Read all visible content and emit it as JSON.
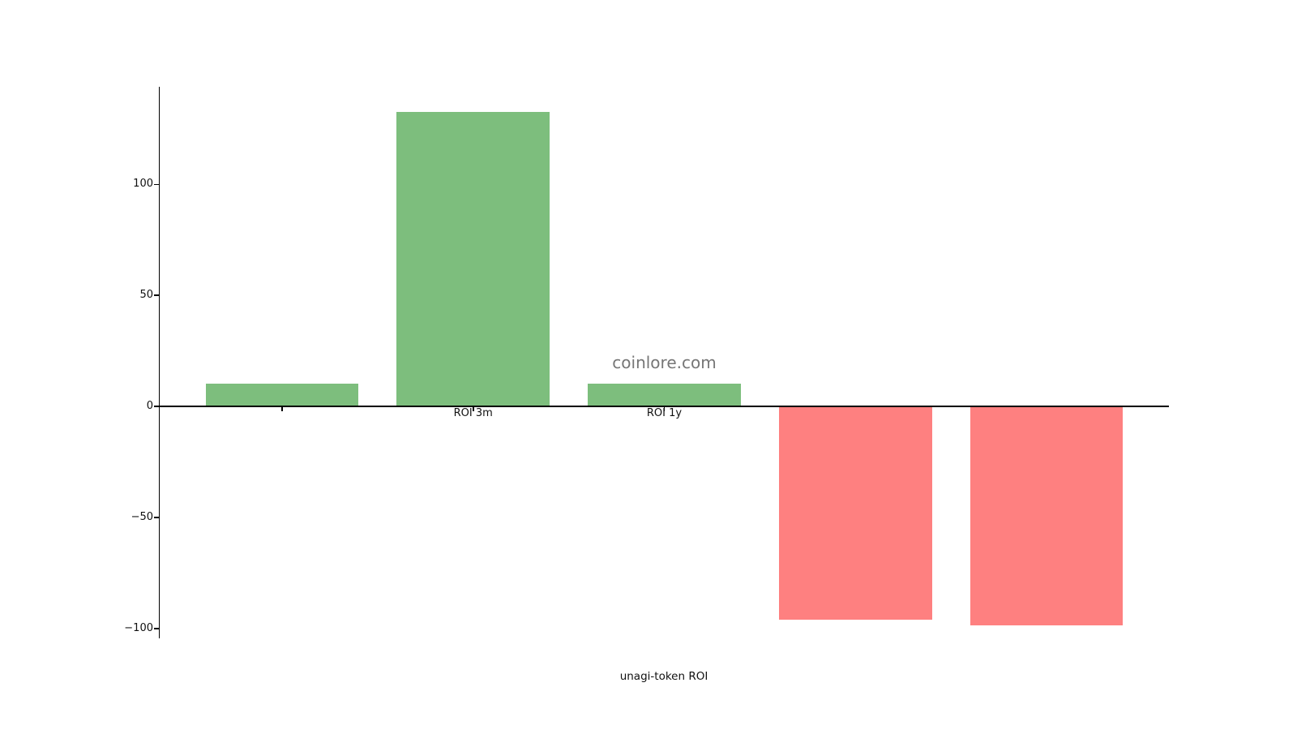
{
  "chart_data": {
    "type": "bar",
    "title": "",
    "xlabel": "unagi-token ROI",
    "ylabel": "",
    "watermark": "coinlore.com",
    "categories": [
      "",
      "ROI 3m",
      "ROI 1y",
      "",
      ""
    ],
    "values": [
      10.3,
      132.6,
      10.2,
      -95.8,
      -98.3
    ],
    "ylim": [
      -104.4,
      143.8
    ],
    "yticks": [
      100,
      50,
      0,
      -50,
      -100
    ],
    "ytick_labels": [
      "100",
      "50",
      "0",
      "−50",
      "−100"
    ],
    "grid": false,
    "legend": "none",
    "bar_width_fraction": 0.8,
    "colors": {
      "positive": "#7dbe7d",
      "negative": "#fe8080",
      "axis": "#000000",
      "tick_label": "#111111",
      "watermark": "#767676",
      "background": "#ffffff"
    }
  }
}
